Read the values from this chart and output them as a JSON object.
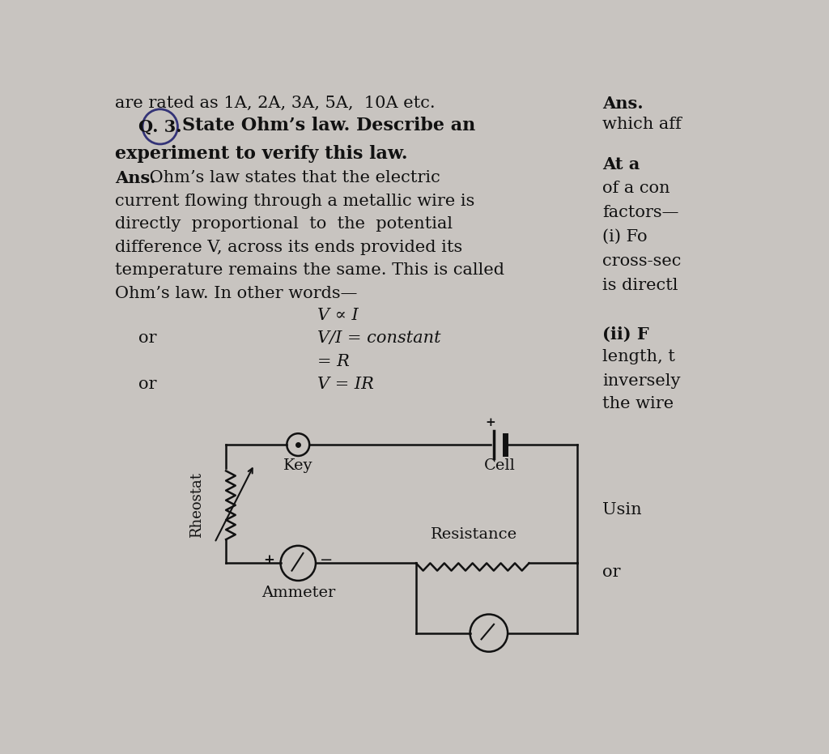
{
  "bg_color": "#c8c4c0",
  "text_color": "#111111",
  "line1": "are rated as 1A, 2A, 3A, 5A,  10A etc.",
  "right_ans": "Ans.",
  "right_which": "which aff",
  "right_at_a": "At a",
  "right_of_a": "of a con",
  "right_factors": "factors—",
  "right_i_fo": "(i) Fo",
  "right_cross": "cross-sec",
  "right_is_dir": "is directl",
  "right_ii_f": "(ii) F",
  "right_length": "length, t",
  "right_inv": "inversely",
  "right_the_wire": "the wire",
  "right_usin": "Usin",
  "right_or": "or",
  "q_num": "Q. 3.",
  "q_rest": "State Ohm’s law. Describe an",
  "q_line2": "experiment to verify this law.",
  "ans_bold": "Ans.",
  "ans_body1": " Ohm’s law states that the electric",
  "ans_body2": "current flowing through a metallic wire is",
  "ans_body3": "directly  proportional  to  the  potential",
  "ans_body4": "difference V, across its ends provided its",
  "ans_body5": "temperature remains the same. This is called",
  "ans_body6": "Ohm’s law. In other words—",
  "eq1": "V ∝ I",
  "or1": "or",
  "eq2": "V/I = constant",
  "eq3": "= R",
  "or2": "or",
  "eq4": "V = IR",
  "label_key": "Key",
  "label_cell": "Cell",
  "label_rheostat": "Rheostat",
  "label_ammeter": "Ammeter",
  "label_resistance": "Resistance",
  "lc": "#111111",
  "lw": 1.8
}
